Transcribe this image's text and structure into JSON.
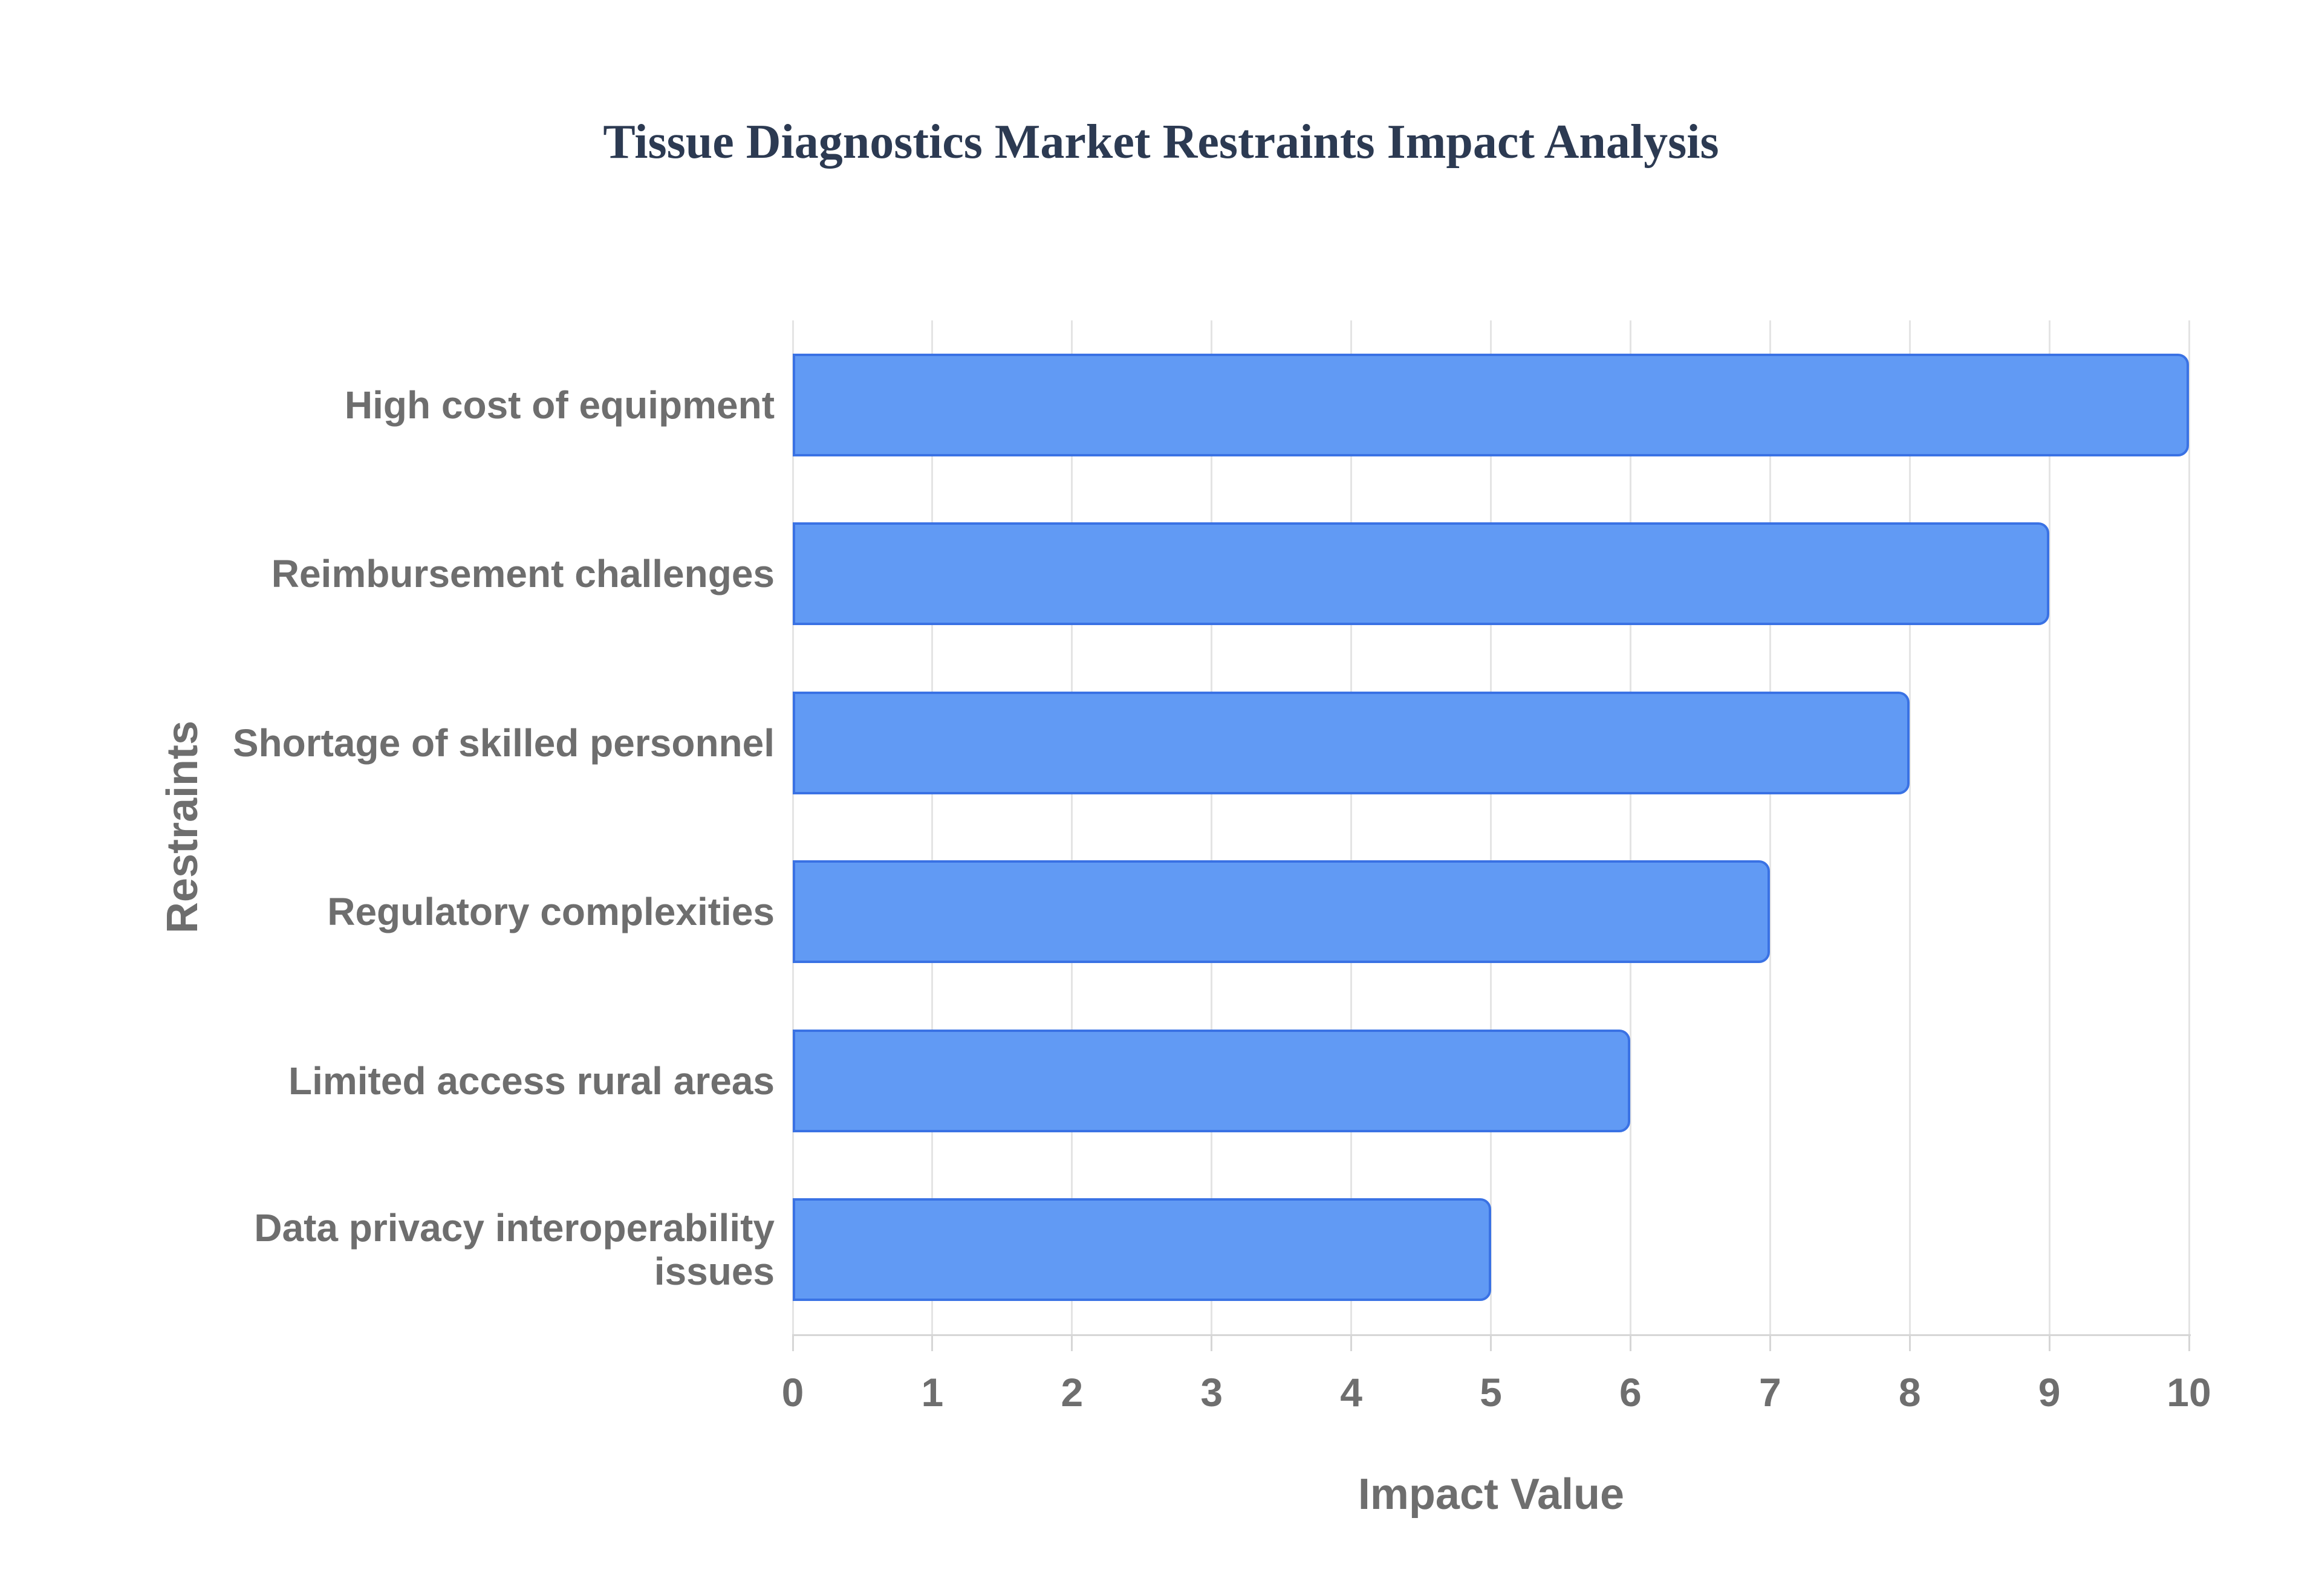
{
  "title": "Tissue Diagnostics Market Restraints Impact Analysis",
  "chart_data": {
    "type": "bar",
    "orientation": "horizontal",
    "title": "Tissue Diagnostics Market Restraints Impact Analysis",
    "categories": [
      "High cost of equipment",
      "Reimbursement challenges",
      "Shortage of skilled personnel",
      "Regulatory complexities",
      "Limited access rural areas",
      "Data privacy interoperability issues"
    ],
    "values": [
      10,
      9,
      8,
      7,
      6,
      5
    ],
    "xlabel": "Impact Value",
    "ylabel": "Restraints",
    "xlim": [
      0,
      10
    ],
    "xticks": [
      0,
      1,
      2,
      3,
      4,
      5,
      6,
      7,
      8,
      9,
      10
    ],
    "grid": true,
    "legend_position": "none"
  },
  "style": {
    "bar_fill": "#619af4",
    "bar_border": "#3a72e4",
    "title_color": "#2c3a52",
    "label_color": "#6e6e6e",
    "gridline_color": "#e4e4e4",
    "axis_line_color": "#d6d6d6",
    "background": "#ffffff"
  }
}
